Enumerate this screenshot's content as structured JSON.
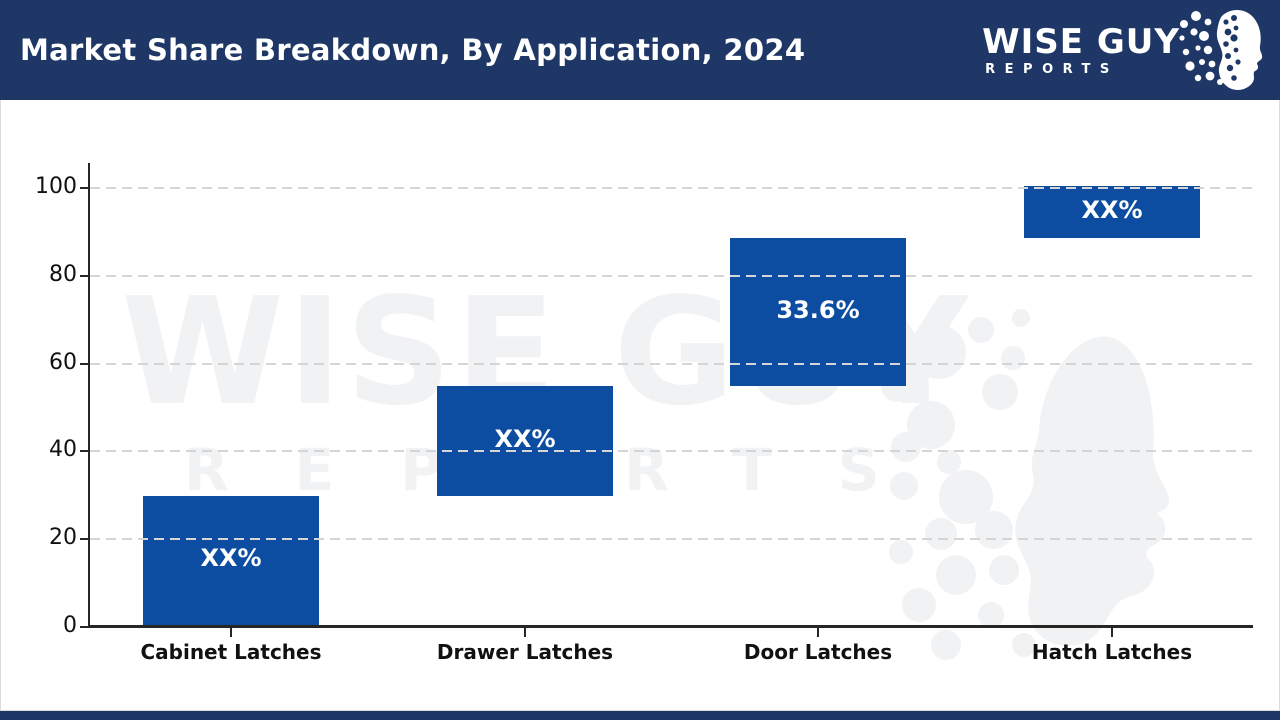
{
  "header": {
    "title": "Market Share Breakdown, By Application, 2024",
    "logo": {
      "line1": "WISE GUY",
      "line2": "REPORTS"
    }
  },
  "watermark": {
    "line1": "WISE GUY",
    "line2": "REPORTS"
  },
  "colors": {
    "header_bg": "#1F3766",
    "footer_bg": "#1F3766",
    "bar": "#0C4DA2",
    "bar_label": "#FFFFFF",
    "axis": "#262626",
    "gridline": "#D5D5D5",
    "watermark": "#F1F2F4"
  },
  "chart_data": {
    "type": "bar",
    "subtype": "waterfall",
    "title": "Market Share Breakdown, By Application, 2024",
    "categories": [
      "Cabinet Latches",
      "Drawer Latches",
      "Door Latches",
      "Hatch Latches"
    ],
    "series": [
      {
        "name": "Market Share (%)",
        "segments": [
          {
            "category": "Cabinet Latches",
            "start": 0,
            "end": 29.4,
            "label": "XX%"
          },
          {
            "category": "Drawer Latches",
            "start": 29.4,
            "end": 54.5,
            "label": "XX%"
          },
          {
            "category": "Door Latches",
            "start": 54.5,
            "end": 88.1,
            "label": "33.6%"
          },
          {
            "category": "Hatch Latches",
            "start": 88.1,
            "end": 100,
            "label": "XX%"
          }
        ]
      }
    ],
    "xlabel": "",
    "ylabel": "",
    "yticks": [
      0,
      20,
      40,
      60,
      80,
      100
    ],
    "ylim": [
      0,
      105
    ],
    "grid": "horizontal-dashed",
    "legend": "none"
  }
}
